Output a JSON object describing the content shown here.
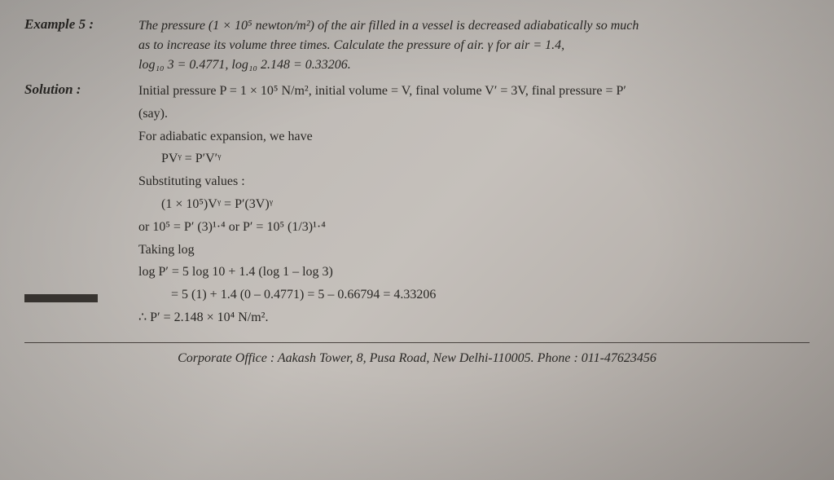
{
  "example": {
    "label": "Example 5 :",
    "problem_line1": "The pressure (1 × 10⁵ newton/m²) of the air filled in a vessel is decreased adiabatically so much",
    "problem_line2": "as to increase its volume three times. Calculate the pressure of air. γ for air = 1.4,",
    "problem_line3": "log₁₀ 3 = 0.4771, log₁₀ 2.148 = 0.33206."
  },
  "solution": {
    "label": "Solution :",
    "line1": "Initial pressure P = 1 × 10⁵ N/m², initial volume = V, final volume V′ = 3V, final pressure = P′",
    "line1b": "(say).",
    "line2": "For adiabatic expansion, we have",
    "eq1": "PVᵞ = P′V′ᵞ",
    "line3": "Substituting values :",
    "eq2": "(1 × 10⁵)Vᵞ = P′(3V)ᵞ",
    "eq3": "or    10⁵ = P′ (3)¹·⁴    or    P′ = 10⁵ (1/3)¹·⁴",
    "line4": "Taking log",
    "eq4": "log P′ = 5 log 10 + 1.4 (log 1 – log 3)",
    "eq5": "= 5 (1) + 1.4 (0 – 0.4771) = 5 – 0.66794 = 4.33206",
    "eq6": "∴  P′ = 2.148 × 10⁴ N/m²."
  },
  "footer": {
    "text": "Corporate Office : Aakash Tower, 8, Pusa Road, New Delhi-110005. Phone : 011-47623456"
  },
  "colors": {
    "text": "#2a2825",
    "bg_light": "#c5c0bb",
    "bg_dark": "#a8a29d",
    "bar": "#3a3632"
  }
}
